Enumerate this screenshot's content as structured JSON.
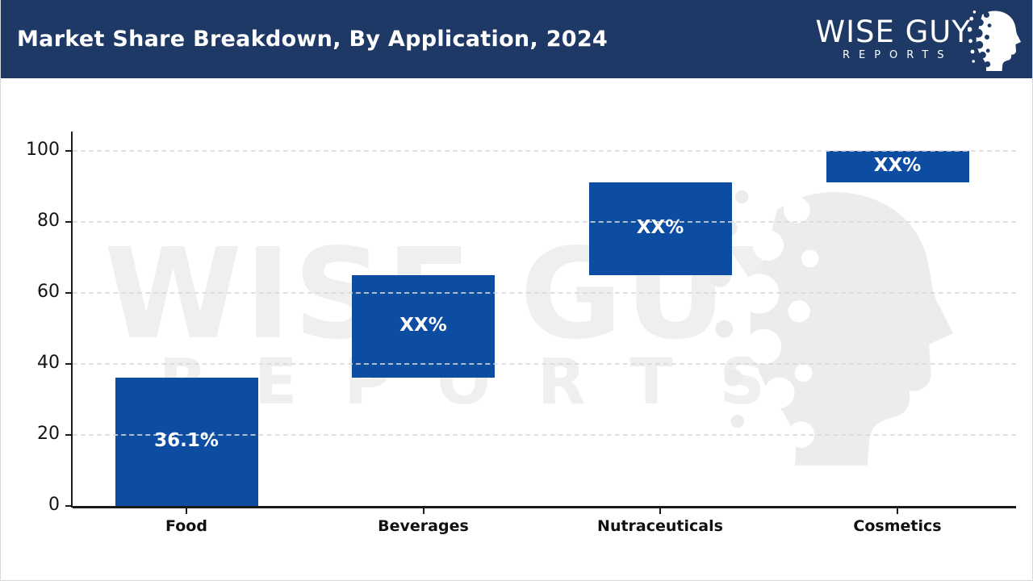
{
  "header": {
    "title": "Market Share Breakdown, By Application, 2024",
    "brand_line1": "WISE GUY",
    "brand_line2": "REPORTS"
  },
  "watermark": {
    "line1": "WISE GUY",
    "line2": "REPORTS"
  },
  "colors": {
    "header_bg": "#1f3966",
    "bar": "#0c4da2",
    "bar_label": "#ffffff",
    "axis": "#1a1a1a",
    "grid": "#d9d9d9",
    "tick_label": "#141414",
    "watermark": "#efefef",
    "watermark_head": "#ececec",
    "border": "#d9d9d9"
  },
  "chart_data": {
    "type": "bar",
    "subtype": "waterfall-breakdown",
    "title": "Market Share Breakdown, By Application, 2024",
    "categories": [
      "Food",
      "Beverages",
      "Nutraceuticals",
      "Cosmetics"
    ],
    "bars": [
      {
        "category": "Food",
        "start": 0,
        "end": 36.1,
        "label": "36.1%"
      },
      {
        "category": "Beverages",
        "start": 36.1,
        "end": 65.0,
        "label": "XX%"
      },
      {
        "category": "Nutraceuticals",
        "start": 65.0,
        "end": 91.1,
        "label": "XX%"
      },
      {
        "category": "Cosmetics",
        "start": 91.1,
        "end": 100.0,
        "label": "XX%"
      }
    ],
    "xlabel": "",
    "ylabel": "",
    "ylim": [
      0,
      105.5
    ],
    "yticks": [
      0,
      20,
      40,
      60,
      80,
      100
    ],
    "grid": "horizontal-dashed-over-bars",
    "legend": "none"
  }
}
